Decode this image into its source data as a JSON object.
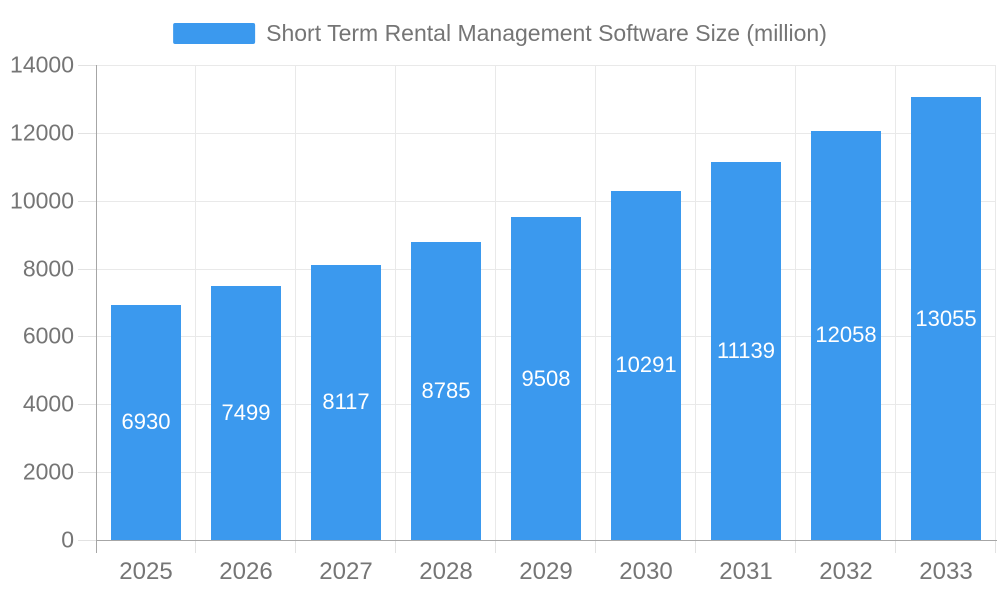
{
  "chart_data": {
    "type": "bar",
    "title": "",
    "series_name": "Short Term Rental Management Software Size (million)",
    "categories": [
      "2025",
      "2026",
      "2027",
      "2028",
      "2029",
      "2030",
      "2031",
      "2032",
      "2033"
    ],
    "values": [
      6930,
      7499,
      8117,
      8785,
      9508,
      10291,
      11139,
      12058,
      13055
    ],
    "xlabel": "",
    "ylabel": "",
    "ylim": [
      0,
      14000
    ],
    "y_ticks": [
      0,
      2000,
      4000,
      6000,
      8000,
      10000,
      12000,
      14000
    ],
    "grid": true,
    "legend_position": "top-center",
    "value_labels": "inside-center"
  },
  "legend": {
    "label": "Short Term Rental Management Software Size (million)"
  },
  "colors": {
    "bar": "#3B99EE",
    "gridline": "#E9E9E9",
    "axis_tick": "#E2E2E2",
    "axis_line": "#A6A6A6",
    "axis_text": "#757575",
    "value_label_text": "#FFFFFF",
    "background": "#FFFFFF"
  }
}
